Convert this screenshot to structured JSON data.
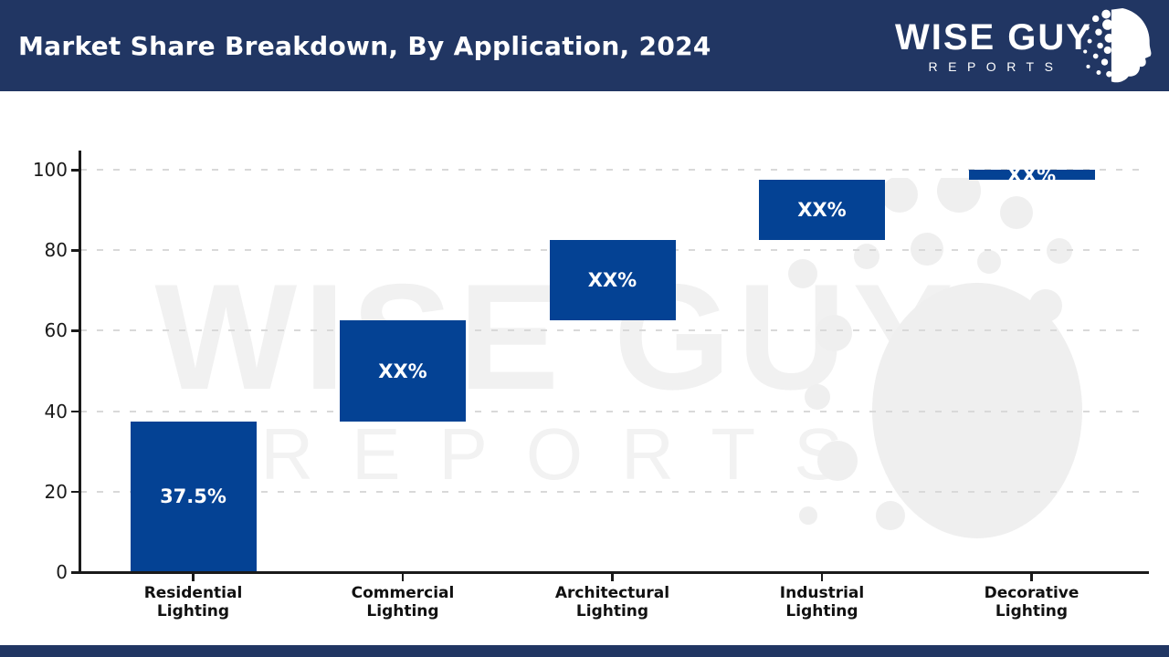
{
  "header": {
    "title": "Market Share Breakdown, By Application, 2024",
    "logo": {
      "wordmark": "WISE GUY",
      "subtext": "REPORTS"
    },
    "bg_color": "#213663"
  },
  "watermark": {
    "text": "WISE GUY",
    "subtext": "REPORTS"
  },
  "chart_data": {
    "type": "bar",
    "subtype": "waterfall",
    "title": "Market Share Breakdown, By Application, 2024",
    "categories": [
      {
        "lines": [
          "Residential",
          "Lighting"
        ]
      },
      {
        "lines": [
          "Commercial",
          "Lighting"
        ]
      },
      {
        "lines": [
          "Architectural",
          "Lighting"
        ]
      },
      {
        "lines": [
          "Industrial",
          "Lighting"
        ]
      },
      {
        "lines": [
          "Decorative",
          "Lighting"
        ]
      }
    ],
    "segments": [
      {
        "category": "Residential Lighting",
        "start": 0,
        "end": 37.5,
        "label": "37.5%"
      },
      {
        "category": "Commercial Lighting",
        "start": 37.5,
        "end": 62.5,
        "label": "XX%"
      },
      {
        "category": "Architectural Lighting",
        "start": 62.5,
        "end": 82.5,
        "label": "XX%"
      },
      {
        "category": "Industrial Lighting",
        "start": 82.5,
        "end": 97.5,
        "label": "XX%"
      },
      {
        "category": "Decorative Lighting",
        "start": 97.5,
        "end": 100,
        "label": "XX%"
      }
    ],
    "xlabel": "",
    "ylabel": "",
    "yticks": [
      0,
      20,
      40,
      60,
      80,
      100
    ],
    "ylim": [
      0,
      105
    ],
    "bar_color": "#044294",
    "label_color": "#ffffff",
    "axis_color": "#1a1a1a",
    "grid": {
      "axis": "y",
      "style": "dashed",
      "color": "#d9d9d9"
    },
    "legend": "none"
  },
  "footer": {
    "bg_color": "#213663"
  }
}
